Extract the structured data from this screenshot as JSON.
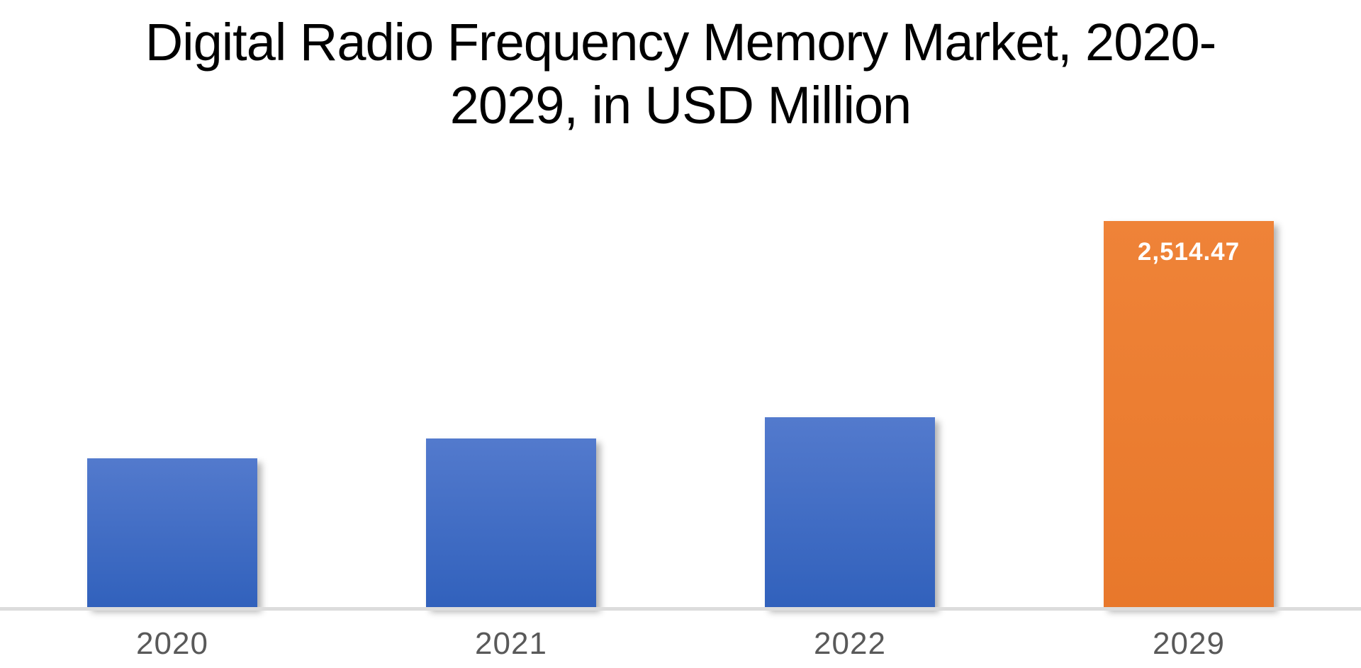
{
  "title": {
    "line1": "Digital Radio Frequency Memory Market, 2020-",
    "line2": "2029, in USD Million"
  },
  "chart_data": {
    "type": "bar",
    "title": "Digital Radio Frequency Memory Market, 2020-2029, in USD Million",
    "categories": [
      "2020",
      "2021",
      "2022",
      "2029"
    ],
    "values": [
      970,
      1100,
      1240,
      2514.47
    ],
    "value_labels": [
      "",
      "",
      "",
      "2,514.47"
    ],
    "units": "USD Million",
    "xlabel": "",
    "ylabel": "",
    "ylim": [
      0,
      3175
    ],
    "grid": false,
    "legend": false,
    "y_axis_visible": false,
    "bar_colors": [
      "blue",
      "blue",
      "blue",
      "orange"
    ]
  },
  "colors": {
    "bar_blue_top": "#537ACD",
    "bar_blue_bottom": "#3161BC",
    "bar_orange_top": "#EF8338",
    "bar_orange_bottom": "#E8782B",
    "axis_line": "#DCDCDC",
    "tick_label": "#595959",
    "title_text": "#000000",
    "data_label_text": "#FFFFFF"
  }
}
